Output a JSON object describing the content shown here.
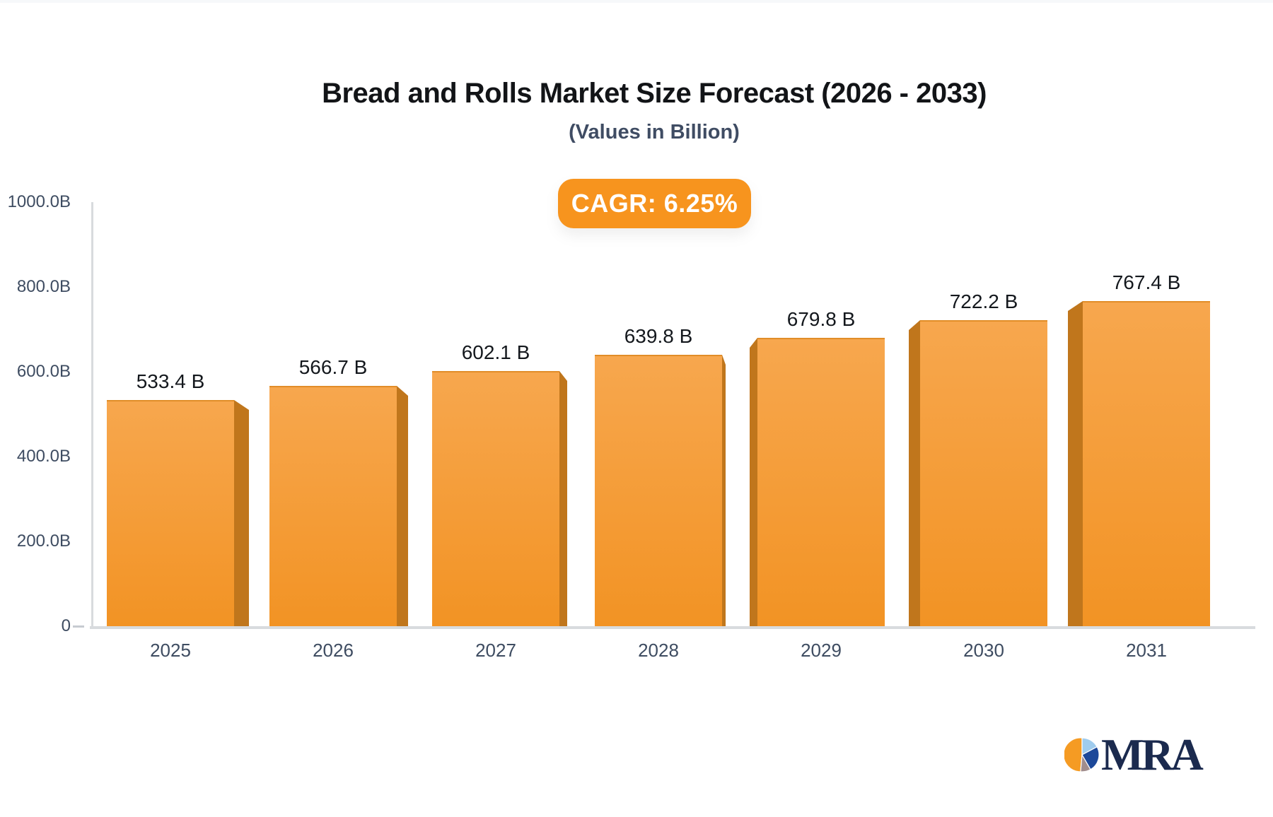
{
  "header": {
    "title": "Bread and Rolls Market Size Forecast (2026 - 2033)",
    "subtitle": "(Values in Billion)",
    "cagr_label": "CAGR: 6.25%"
  },
  "chart_data": {
    "type": "bar",
    "title": "Bread and Rolls Market Size Forecast (2026 - 2033)",
    "subtitle": "(Values in Billion)",
    "annotation": "CAGR: 6.25%",
    "categories": [
      "2025",
      "2026",
      "2027",
      "2028",
      "2029",
      "2030",
      "2031"
    ],
    "values": [
      533.4,
      566.7,
      602.1,
      639.8,
      679.8,
      722.2,
      767.4
    ],
    "value_labels": [
      "533.4 B",
      "566.7 B",
      "602.1 B",
      "639.8 B",
      "679.8 B",
      "722.2 B",
      "767.4 B"
    ],
    "yticks": [
      {
        "label": "1000.0B",
        "value": 1000
      },
      {
        "label": "800.0B",
        "value": 800
      },
      {
        "label": "600.0B",
        "value": 600
      },
      {
        "label": "400.0B",
        "value": 400
      },
      {
        "label": "200.0B",
        "value": 200
      },
      {
        "label": "0",
        "value": 0
      }
    ],
    "ylim": [
      0,
      1000
    ],
    "grid": false,
    "legend": false,
    "style_3d": true
  },
  "colors": {
    "accent_orange": "#f7941e",
    "bar_face_top": "#f7a74e",
    "bar_face_bottom": "#f29324",
    "bar_side": "#c0761c",
    "axis_line": "#d8dbde",
    "axis_text": "#3e4c61",
    "title_text": "#121417",
    "logo_navy": "#1b2a4e",
    "logo_pie_orange": "#f59b23",
    "logo_pie_lightblue": "#9fccee",
    "logo_pie_navy": "#1c4899",
    "logo_pie_gray": "#a18d8d"
  },
  "branding": {
    "logo_text": "MRA"
  }
}
